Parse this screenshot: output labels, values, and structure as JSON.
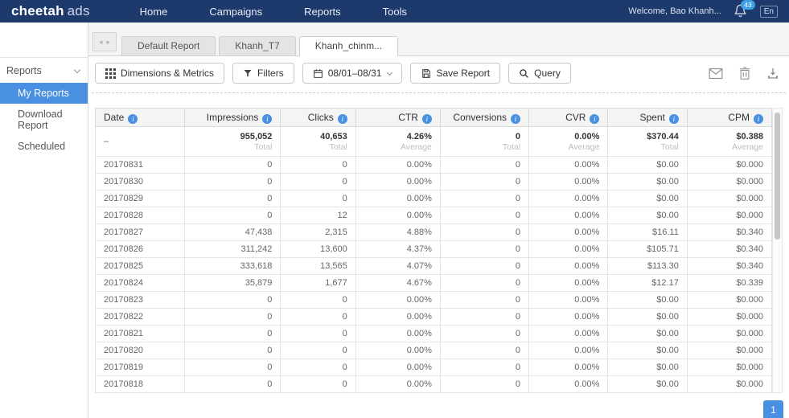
{
  "navbar": {
    "logo_bold": "cheetah",
    "logo_light": "ads",
    "items": [
      "Home",
      "Campaigns",
      "Reports",
      "Tools"
    ],
    "welcome_text": "Welcome,  Bao Khanh...",
    "notification_count": "43",
    "language": "En"
  },
  "sidebar": {
    "group_label": "Reports",
    "items": [
      {
        "label": "My Reports",
        "active": true
      },
      {
        "label": "Download Report",
        "active": false
      },
      {
        "label": "Scheduled",
        "active": false
      }
    ]
  },
  "tabs": {
    "items": [
      {
        "label": "Default Report",
        "active": false
      },
      {
        "label": "Khanh_T7",
        "active": false
      },
      {
        "label": "Khanh_chinm...",
        "active": true
      }
    ]
  },
  "toolbar": {
    "dimensions_metrics_label": "Dimensions & Metrics",
    "filters_label": "Filters",
    "date_range_label": "08/01–08/31",
    "save_report_label": "Save Report",
    "query_label": "Query"
  },
  "icons": {
    "grid-icon": "3x3 grid of squares",
    "filter-icon": "funnel",
    "calendar-icon": "calendar",
    "save-icon": "floppy disk",
    "search-icon": "magnifier",
    "mail-icon": "envelope",
    "trash-icon": "trash bin",
    "download-icon": "arrow into tray",
    "bell-icon": "notification bell",
    "info-icon": "blue circle with i"
  },
  "colors": {
    "navbar_bg": "#1e3a6c",
    "accent_blue": "#4a90e2",
    "badge_blue": "#3ea1e6"
  },
  "table": {
    "columns": [
      "Date",
      "Impressions",
      "Clicks",
      "CTR",
      "Conversions",
      "CVR",
      "Spent",
      "CPM"
    ],
    "totals": {
      "date": "–",
      "cells": [
        {
          "value": "955,052",
          "sub": "Total"
        },
        {
          "value": "40,653",
          "sub": "Total"
        },
        {
          "value": "4.26%",
          "sub": "Average"
        },
        {
          "value": "0",
          "sub": "Total"
        },
        {
          "value": "0.00%",
          "sub": "Average"
        },
        {
          "value": "$370.44",
          "sub": "Total"
        },
        {
          "value": "$0.388",
          "sub": "Average"
        }
      ]
    },
    "rows": [
      [
        "20170831",
        "0",
        "0",
        "0.00%",
        "0",
        "0.00%",
        "$0.00",
        "$0.000"
      ],
      [
        "20170830",
        "0",
        "0",
        "0.00%",
        "0",
        "0.00%",
        "$0.00",
        "$0.000"
      ],
      [
        "20170829",
        "0",
        "0",
        "0.00%",
        "0",
        "0.00%",
        "$0.00",
        "$0.000"
      ],
      [
        "20170828",
        "0",
        "12",
        "0.00%",
        "0",
        "0.00%",
        "$0.00",
        "$0.000"
      ],
      [
        "20170827",
        "47,438",
        "2,315",
        "4.88%",
        "0",
        "0.00%",
        "$16.11",
        "$0.340"
      ],
      [
        "20170826",
        "311,242",
        "13,600",
        "4.37%",
        "0",
        "0.00%",
        "$105.71",
        "$0.340"
      ],
      [
        "20170825",
        "333,618",
        "13,565",
        "4.07%",
        "0",
        "0.00%",
        "$113.30",
        "$0.340"
      ],
      [
        "20170824",
        "35,879",
        "1,677",
        "4.67%",
        "0",
        "0.00%",
        "$12.17",
        "$0.339"
      ],
      [
        "20170823",
        "0",
        "0",
        "0.00%",
        "0",
        "0.00%",
        "$0.00",
        "$0.000"
      ],
      [
        "20170822",
        "0",
        "0",
        "0.00%",
        "0",
        "0.00%",
        "$0.00",
        "$0.000"
      ],
      [
        "20170821",
        "0",
        "0",
        "0.00%",
        "0",
        "0.00%",
        "$0.00",
        "$0.000"
      ],
      [
        "20170820",
        "0",
        "0",
        "0.00%",
        "0",
        "0.00%",
        "$0.00",
        "$0.000"
      ],
      [
        "20170819",
        "0",
        "0",
        "0.00%",
        "0",
        "0.00%",
        "$0.00",
        "$0.000"
      ],
      [
        "20170818",
        "0",
        "0",
        "0.00%",
        "0",
        "0.00%",
        "$0.00",
        "$0.000"
      ]
    ]
  },
  "pagination": {
    "current_page": "1"
  }
}
